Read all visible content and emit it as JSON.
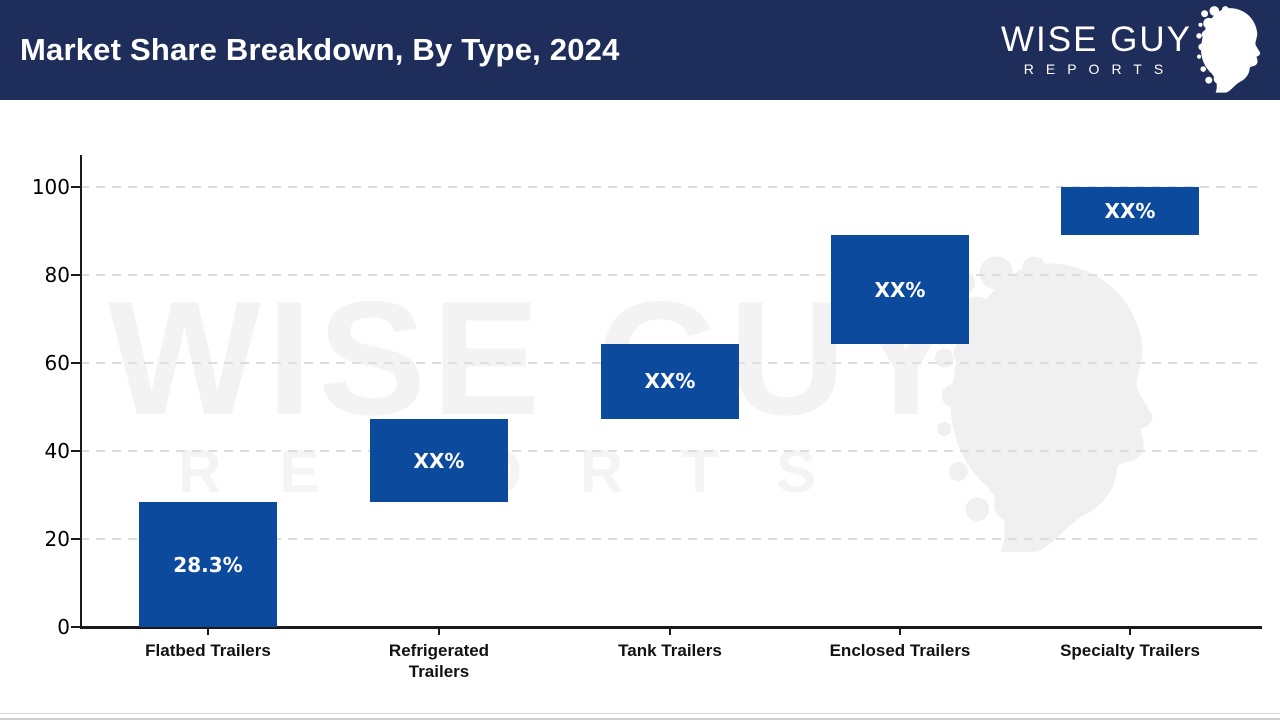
{
  "header": {
    "title": "Market Share Breakdown, By Type, 2024",
    "logo": {
      "line1": "WISE GUY",
      "line2": "REPORTS"
    }
  },
  "watermark": {
    "line1": "WISE GUY",
    "line2": "REPORTS"
  },
  "colors": {
    "header_bg": "#1f2d5a",
    "bar_blue": "#0c4a9e",
    "bar_label": "#ffffff",
    "gridline": "#dedede",
    "axis": "#1a1a1a",
    "watermark_gray": "#f3f3f3"
  },
  "chart_data": {
    "type": "bar",
    "subtype": "waterfall",
    "title": "Market Share Breakdown, By Type, 2024",
    "categories": [
      "Flatbed Trailers",
      "Refrigerated\nTrailers",
      "Tank Trailers",
      "Enclosed Trailers",
      "Specialty Trailers"
    ],
    "bars": [
      {
        "category": "Flatbed Trailers",
        "label": "28.3%",
        "start": 0,
        "end": 28.3
      },
      {
        "category": "Refrigerated Trailers",
        "label": "XX%",
        "start": 28.3,
        "end": 47.3
      },
      {
        "category": "Tank Trailers",
        "label": "XX%",
        "start": 47.3,
        "end": 64.3
      },
      {
        "category": "Enclosed Trailers",
        "label": "XX%",
        "start": 64.3,
        "end": 89.1
      },
      {
        "category": "Specialty Trailers",
        "label": "XX%",
        "start": 89.1,
        "end": 100
      }
    ],
    "yticks": [
      0,
      20,
      40,
      60,
      80,
      100
    ],
    "ylim": [
      0,
      107
    ],
    "xlabel": "",
    "ylabel": "",
    "grid": "dashed-horizontal",
    "legend": "none"
  }
}
